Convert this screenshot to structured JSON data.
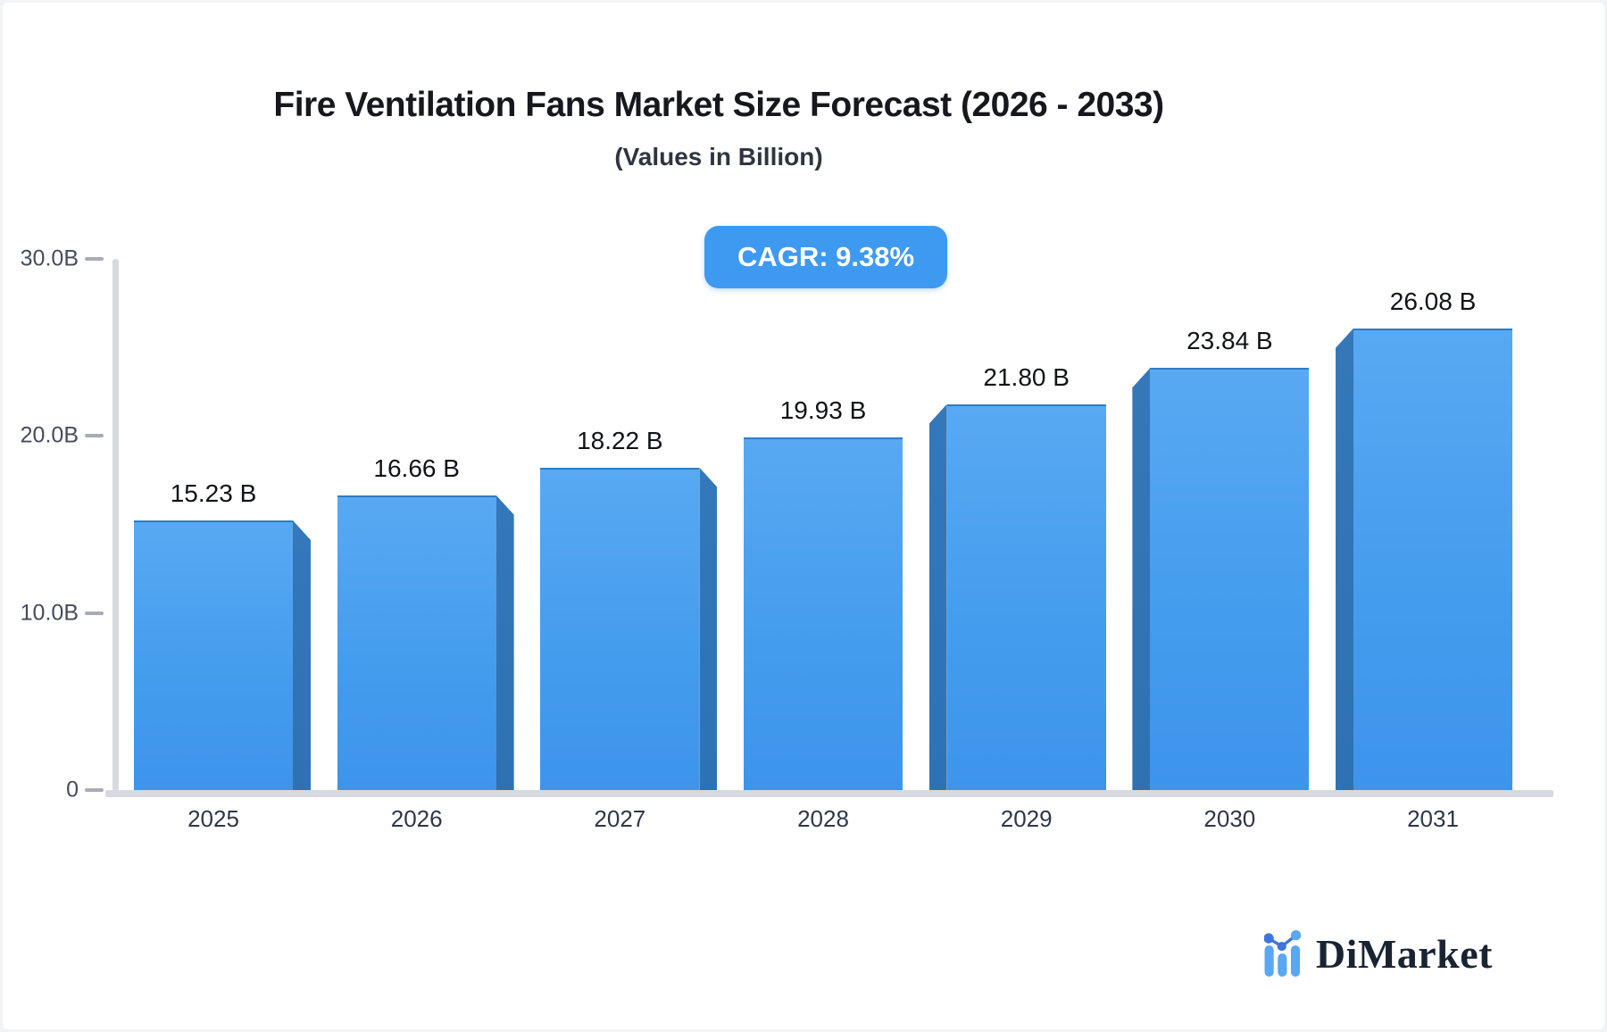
{
  "chart_data": {
    "type": "bar",
    "title": "Fire Ventilation Fans Market Size Forecast (2026 - 2033)",
    "subtitle": "(Values in Billion)",
    "badge_label": "CAGR: 9.38%",
    "categories": [
      "2025",
      "2026",
      "2027",
      "2028",
      "2029",
      "2030",
      "2031"
    ],
    "values": [
      15.23,
      16.66,
      18.22,
      19.93,
      21.8,
      23.84,
      26.08
    ],
    "point_labels": [
      "15.23 B",
      "16.66 B",
      "18.22 B",
      "19.93 B",
      "21.80 B",
      "23.84 B",
      "26.08 B"
    ],
    "ylabel": "",
    "xlabel": "",
    "ylim": [
      0,
      30
    ],
    "yticks": [
      {
        "label": "30.0B",
        "value": 30
      },
      {
        "label": "20.0B",
        "value": 20
      },
      {
        "label": "10.0B",
        "value": 10
      },
      {
        "label": "0",
        "value": 0
      }
    ],
    "grid": "off",
    "legend": "none",
    "colors": {
      "bar_face_top": "#58a9f2",
      "bar_face_bottom": "#3d94eb",
      "bar_side": "#2e72b4",
      "bar_edge": "#2d7cc6",
      "axis": "#d6dae0",
      "tick": "#a7acb6",
      "axis_text": "#454c5b",
      "badge_bg": "#3e9af0",
      "badge_text": "#ffffff",
      "title_text": "#16181e"
    }
  },
  "logo": {
    "text": "DiMarket",
    "icon": "bar-chart-with-trendline-icon",
    "icon_bar_color": "#5aa7f4",
    "icon_line_color": "#3f74dc"
  }
}
